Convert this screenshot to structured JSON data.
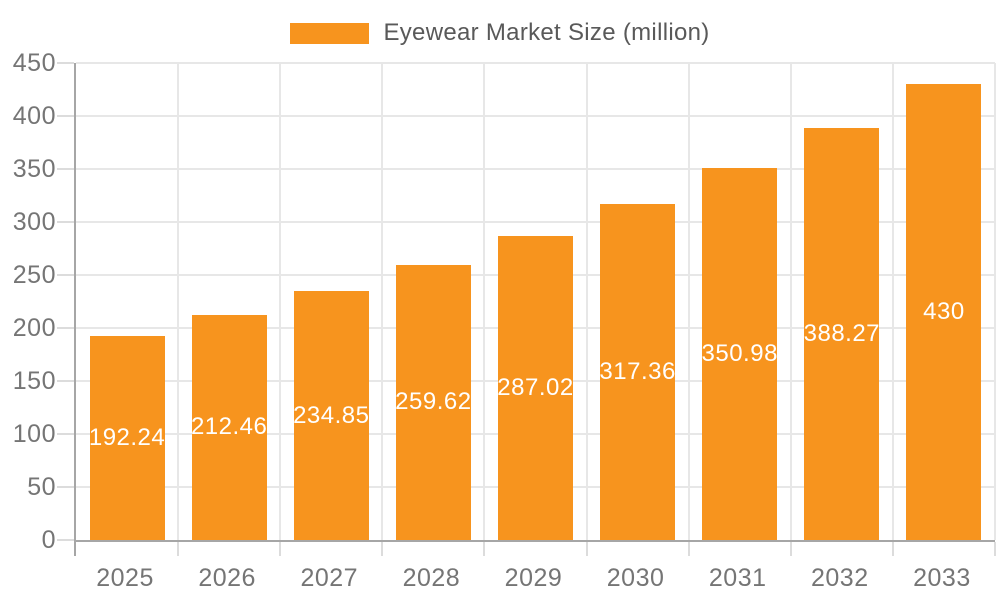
{
  "chart_data": {
    "type": "bar",
    "title": "",
    "legend": "Eyewear Market Size (million)",
    "legend_position": "top-center",
    "categories": [
      "2025",
      "2026",
      "2027",
      "2028",
      "2029",
      "2030",
      "2031",
      "2032",
      "2033"
    ],
    "values": [
      192.24,
      212.46,
      234.85,
      259.62,
      287.02,
      317.36,
      350.98,
      388.27,
      430
    ],
    "value_labels": [
      "192.24",
      "212.46",
      "234.85",
      "259.62",
      "287.02",
      "317.36",
      "350.98",
      "388.27",
      "430"
    ],
    "xlabel": "",
    "ylabel": "",
    "ylim": [
      0,
      450
    ],
    "ytick_step": 50,
    "yticks": [
      0,
      50,
      100,
      150,
      200,
      250,
      300,
      350,
      400,
      450
    ],
    "grid": true,
    "colors": {
      "bar": "#F7941E",
      "grid": "#E7E7E7",
      "axis": "#A6A6A6",
      "tick": "#DCDCDC",
      "axis_label_text": "#757575",
      "legend_text": "#595959",
      "value_label_text": "#FFFFFF",
      "background": "#FFFFFF"
    }
  }
}
